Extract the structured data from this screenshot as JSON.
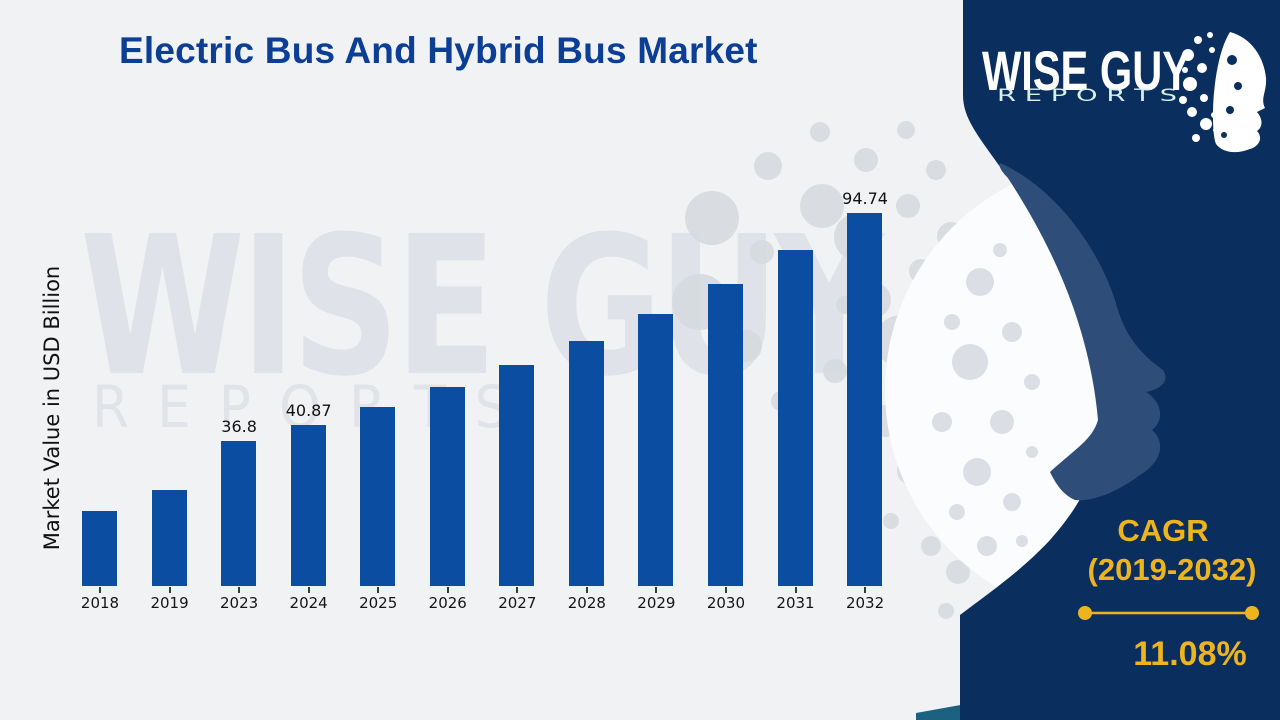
{
  "title": "Electric Bus And Hybrid Bus Market",
  "ylabel": "Market Value in USD Billion",
  "watermark": {
    "line1": "WISE GUY",
    "line2": "R E P O R T S"
  },
  "logo": {
    "line1": "WISE GUY",
    "line2": "R E P O R T S"
  },
  "cagr": {
    "heading": "CAGR",
    "range": "(2019-2032)",
    "value": "11.08%"
  },
  "icons": {
    "logo_head": "head-profile-dots-icon",
    "panel_face": "head-profile-silhouette",
    "background": "halftone-dots-pattern"
  },
  "colors": {
    "bar": "#0b4da1",
    "navy_panel": "#0a2e5e",
    "face_silhouette": "#2e4d78",
    "gold": "#edb41e",
    "title_blue": "#0c3e95",
    "teal_accent": "#1c6180",
    "watermark_gray": "#d9dde4",
    "background": "#f1f2f4"
  },
  "chart_data": {
    "type": "bar",
    "title": "Electric Bus And Hybrid Bus Market",
    "xlabel": "",
    "ylabel": "Market Value in USD Billion",
    "unit": "USD Billion",
    "categories": [
      "2018",
      "2019",
      "2023",
      "2024",
      "2025",
      "2026",
      "2027",
      "2028",
      "2029",
      "2030",
      "2031",
      "2032"
    ],
    "values": [
      19.0,
      24.26,
      36.8,
      40.87,
      45.4,
      50.43,
      56.02,
      62.23,
      69.12,
      76.78,
      85.29,
      94.74
    ],
    "data_labels": {
      "2023": "36.8",
      "2024": "40.87",
      "2032": "94.74"
    },
    "ylim": [
      0,
      100
    ],
    "grid": false,
    "legend": "none",
    "bar_color": "#0b4da1",
    "cagr_note": "CAGR (2019-2032) 11.08%"
  }
}
